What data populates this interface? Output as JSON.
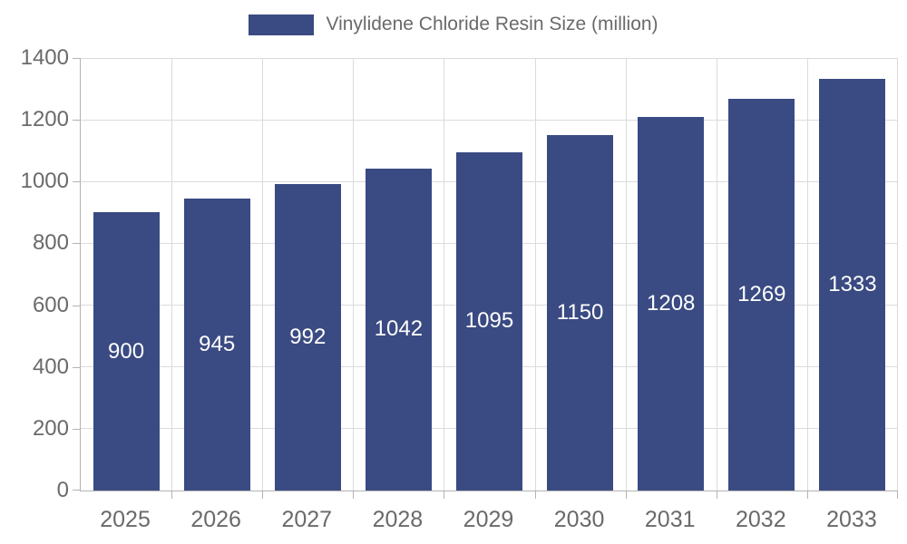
{
  "legend": {
    "label": "Vinylidene Chloride Resin Size (million)"
  },
  "colors": {
    "bar": "#3A4A82",
    "grid": "#DBDBDB",
    "axis": "#B3B3B3",
    "tick_text": "#6A6A6A",
    "value_label_text": "#FFFFFF",
    "background": "#FFFFFF"
  },
  "chart_data": {
    "type": "bar",
    "title": "",
    "legend": "Vinylidene Chloride Resin Size (million)",
    "legend_position": "top",
    "categories": [
      "2025",
      "2026",
      "2027",
      "2028",
      "2029",
      "2030",
      "2031",
      "2032",
      "2033"
    ],
    "values": [
      900,
      945,
      992,
      1042,
      1095,
      1150,
      1208,
      1269,
      1333
    ],
    "xlabel": "",
    "ylabel": "",
    "ylim": [
      0,
      1400
    ],
    "ytick_step": 200,
    "yticks": [
      0,
      200,
      400,
      600,
      800,
      1000,
      1200,
      1400
    ],
    "grid": true,
    "value_labels": "inside-center",
    "bar_width_ratio": 0.73
  }
}
